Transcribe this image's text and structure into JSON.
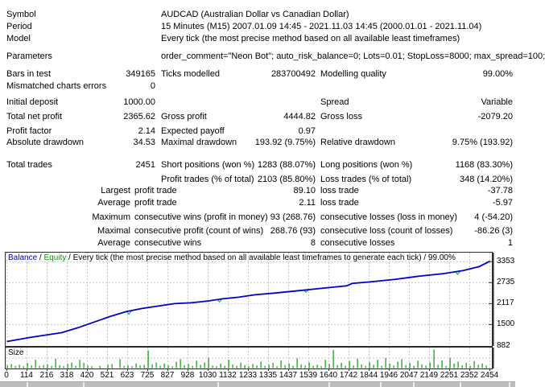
{
  "report": {
    "rows": [
      {
        "top": 12,
        "cells": [
          {
            "c": "l1",
            "t": "Symbol"
          },
          {
            "c": "lw",
            "t": "AUDCAD (Australian Dollar vs Canadian Dollar)"
          }
        ]
      },
      {
        "top": 27,
        "cells": [
          {
            "c": "l1",
            "t": "Period"
          },
          {
            "c": "lw",
            "t": "15 Minutes (M15) 2007.01.09 14:45 - 2021.11.03 14:45 (2000.01.01 - 2021.11.04)"
          }
        ]
      },
      {
        "top": 42,
        "cells": [
          {
            "c": "l1",
            "t": "Model"
          },
          {
            "c": "lw",
            "t": "Every tick (the most precise method based on all available least timeframes)"
          }
        ]
      },
      {
        "top": 64,
        "cells": [
          {
            "c": "l1",
            "t": "Parameters"
          },
          {
            "c": "lw",
            "t": "order_comment=\"Neon Bot\"; auto_risk_balance=0; Lots=0.01; StopLoss=8000; max_spread=100;"
          }
        ]
      },
      {
        "top": 86,
        "cells": [
          {
            "c": "l1",
            "t": "Bars in test"
          },
          {
            "c": "v1",
            "t": "349165"
          },
          {
            "c": "l2",
            "t": "Ticks modelled"
          },
          {
            "c": "v2",
            "t": "283700492"
          },
          {
            "c": "l3",
            "t": "Modelling quality"
          },
          {
            "c": "v3",
            "t": "99.00%"
          }
        ]
      },
      {
        "top": 101,
        "cells": [
          {
            "c": "l1",
            "t": "Mismatched charts errors"
          },
          {
            "c": "v1",
            "t": "0"
          }
        ]
      },
      {
        "top": 121,
        "cells": [
          {
            "c": "l1",
            "t": "Initial deposit"
          },
          {
            "c": "v1",
            "t": "1000.00"
          },
          {
            "c": "l3",
            "t": "Spread"
          },
          {
            "c": "v3",
            "t": "Variable"
          }
        ]
      },
      {
        "top": 139,
        "cells": [
          {
            "c": "l1",
            "t": "Total net profit"
          },
          {
            "c": "v1",
            "t": "2365.62"
          },
          {
            "c": "l2",
            "t": "Gross profit"
          },
          {
            "c": "v2",
            "t": "4444.82"
          },
          {
            "c": "l3",
            "t": "Gross loss"
          },
          {
            "c": "v3",
            "t": "-2079.20"
          }
        ]
      },
      {
        "top": 157,
        "cells": [
          {
            "c": "l1",
            "t": "Profit factor"
          },
          {
            "c": "v1",
            "t": "2.14"
          },
          {
            "c": "l2",
            "t": "Expected payoff"
          },
          {
            "c": "v2",
            "t": "0.97"
          }
        ]
      },
      {
        "top": 171,
        "cells": [
          {
            "c": "l1",
            "t": "Absolute drawdown"
          },
          {
            "c": "v1",
            "t": "34.53"
          },
          {
            "c": "l2",
            "t": "Maximal drawdown"
          },
          {
            "c": "v2",
            "t": "193.92 (9.75%)"
          },
          {
            "c": "l3",
            "t": "Relative drawdown"
          },
          {
            "c": "v3",
            "t": "9.75% (193.92)"
          }
        ]
      },
      {
        "top": 199,
        "cells": [
          {
            "c": "l1",
            "t": "Total trades"
          },
          {
            "c": "v1",
            "t": "2451"
          },
          {
            "c": "l2",
            "t": "Short positions (won %)"
          },
          {
            "c": "v2",
            "t": "1283 (88.07%)"
          },
          {
            "c": "l3",
            "t": "Long positions (won %)"
          },
          {
            "c": "v3",
            "t": "1168 (83.30%)"
          }
        ]
      },
      {
        "top": 217,
        "cells": [
          {
            "c": "l2",
            "t": "Profit trades (% of total)"
          },
          {
            "c": "v2",
            "t": "2103 (85.80%)"
          },
          {
            "c": "l3",
            "t": "Loss trades (% of total)"
          },
          {
            "c": "v3",
            "t": "348 (14.20%)"
          }
        ]
      },
      {
        "top": 231,
        "cells": [
          {
            "c": "q",
            "t": "Largest"
          },
          {
            "c": "ql",
            "t": "profit trade"
          },
          {
            "c": "v2",
            "t": "89.10"
          },
          {
            "c": "l3",
            "t": "loss trade"
          },
          {
            "c": "v3",
            "t": "-37.78"
          }
        ]
      },
      {
        "top": 246,
        "cells": [
          {
            "c": "q",
            "t": "Average"
          },
          {
            "c": "ql",
            "t": "profit trade"
          },
          {
            "c": "v2",
            "t": "2.11"
          },
          {
            "c": "l3",
            "t": "loss trade"
          },
          {
            "c": "v3",
            "t": "-5.97"
          }
        ]
      },
      {
        "top": 264,
        "cells": [
          {
            "c": "q",
            "t": "Maximum"
          },
          {
            "c": "ql",
            "t": "consecutive wins (profit in money)"
          },
          {
            "c": "v2",
            "t": "93 (268.76)"
          },
          {
            "c": "l3",
            "t": "consecutive losses (loss in money)"
          },
          {
            "c": "v3",
            "t": "4 (-54.20)"
          }
        ]
      },
      {
        "top": 281,
        "cells": [
          {
            "c": "q",
            "t": "Maximal"
          },
          {
            "c": "ql",
            "t": "consecutive profit (count of wins)"
          },
          {
            "c": "v2",
            "t": "268.76 (93)"
          },
          {
            "c": "l3",
            "t": "consecutive loss (count of losses)"
          },
          {
            "c": "v3",
            "t": "-86.26 (3)"
          }
        ]
      },
      {
        "top": 296,
        "cells": [
          {
            "c": "q",
            "t": "Average"
          },
          {
            "c": "ql",
            "t": "consecutive wins"
          },
          {
            "c": "v2",
            "t": "8"
          },
          {
            "c": "l3",
            "t": "consecutive losses"
          },
          {
            "c": "v3",
            "t": "1"
          }
        ]
      }
    ]
  },
  "chart_data": [
    {
      "type": "line",
      "title_segments": [
        {
          "t": "Balance",
          "color": "#0000c8"
        },
        {
          "t": " / ",
          "color": "#000000"
        },
        {
          "t": "Equity",
          "color": "#00a000"
        },
        {
          "t": " / Every tick (the most precise method based on all available least timeframes to generate each tick) / 99.00%",
          "color": "#000000"
        }
      ],
      "xlim": [
        0,
        2454
      ],
      "ylim": [
        882,
        3630
      ],
      "y_ticks": [
        3353,
        2735,
        2117,
        1500,
        882
      ],
      "x_ticks": [
        "0",
        "114",
        "216",
        "318",
        "420",
        "521",
        "623",
        "725",
        "827",
        "928",
        "1030",
        "1132",
        "1233",
        "1335",
        "1437",
        "1539",
        "1640",
        "1742",
        "1844",
        "1946",
        "2047",
        "2149",
        "2251",
        "2352",
        "2454"
      ],
      "grid": "dashed",
      "legend_position": "top-left",
      "series": [
        {
          "name": "Balance",
          "color": "#0000c8",
          "points": [
            [
              0,
              1000
            ],
            [
              115,
              1120
            ],
            [
              196,
              1190
            ],
            [
              278,
              1262
            ],
            [
              360,
              1405
            ],
            [
              442,
              1570
            ],
            [
              524,
              1737
            ],
            [
              605,
              1880
            ],
            [
              687,
              1975
            ],
            [
              769,
              2046
            ],
            [
              851,
              2117
            ],
            [
              933,
              2141
            ],
            [
              1014,
              2189
            ],
            [
              1096,
              2260
            ],
            [
              1178,
              2307
            ],
            [
              1260,
              2378
            ],
            [
              1358,
              2426
            ],
            [
              1481,
              2497
            ],
            [
              1603,
              2569
            ],
            [
              1726,
              2640
            ],
            [
              1755,
              2712
            ],
            [
              1849,
              2760
            ],
            [
              1971,
              2830
            ],
            [
              2094,
              2925
            ],
            [
              2217,
              3000
            ],
            [
              2319,
              3090
            ],
            [
              2401,
              3210
            ],
            [
              2454,
              3365
            ]
          ]
        },
        {
          "name": "Equity",
          "color": "#00a800",
          "dips": [
            {
              "t": 620,
              "drop": 95
            },
            {
              "t": 1080,
              "drop": 80
            },
            {
              "t": 1520,
              "drop": 70
            },
            {
              "t": 2290,
              "drop": 85
            }
          ]
        }
      ]
    },
    {
      "type": "bar",
      "title": "Size",
      "color": "#00a000",
      "values": [
        0.15,
        0.22,
        0.12,
        0.18,
        0.1,
        0.28,
        0.14,
        0.45,
        0.12,
        0.16,
        0.2,
        0.12,
        0.5,
        0.15,
        0.1,
        0.22,
        0.3,
        0.12,
        0.45,
        0.28,
        0.14,
        0.1,
        0,
        0.12,
        0,
        0.18,
        0.22,
        0,
        0.48,
        0.12,
        0.15,
        0.1,
        0.25,
        0.14,
        0.18,
        0.95,
        0.2,
        0.3,
        0.12,
        0.25,
        0.15,
        0.1,
        0.35,
        0.48,
        0.15,
        0.22,
        0.12,
        0.4,
        0.18,
        0.3,
        0.55,
        0.14,
        0.1,
        0.25,
        0.12,
        0.45,
        0.2,
        0.12,
        0.3,
        0.16,
        0.1,
        0.22,
        0.14,
        0.35,
        0.12,
        0.18,
        0.28,
        0.1,
        0.42,
        0.15,
        0.25,
        0.12,
        0.52,
        0.2,
        0.14,
        0.3,
        0.12,
        0.18,
        0.1,
        0.45,
        0.22,
        0.98,
        0.16,
        0.28,
        0.12,
        0.38,
        0.14,
        0.5,
        0.2,
        0.12,
        0.32,
        0.18,
        0.45,
        0.12,
        0.55,
        0.25,
        0.14,
        0.35,
        0.48,
        0.16,
        0.28,
        0.12,
        0.4,
        0.2,
        0.14,
        0.3,
        1.0,
        0.18,
        0.42,
        0.12,
        0.55,
        0.25,
        0.35,
        0.15,
        0.28,
        0.12,
        0.38,
        0.18,
        0.25,
        0.14
      ]
    }
  ]
}
